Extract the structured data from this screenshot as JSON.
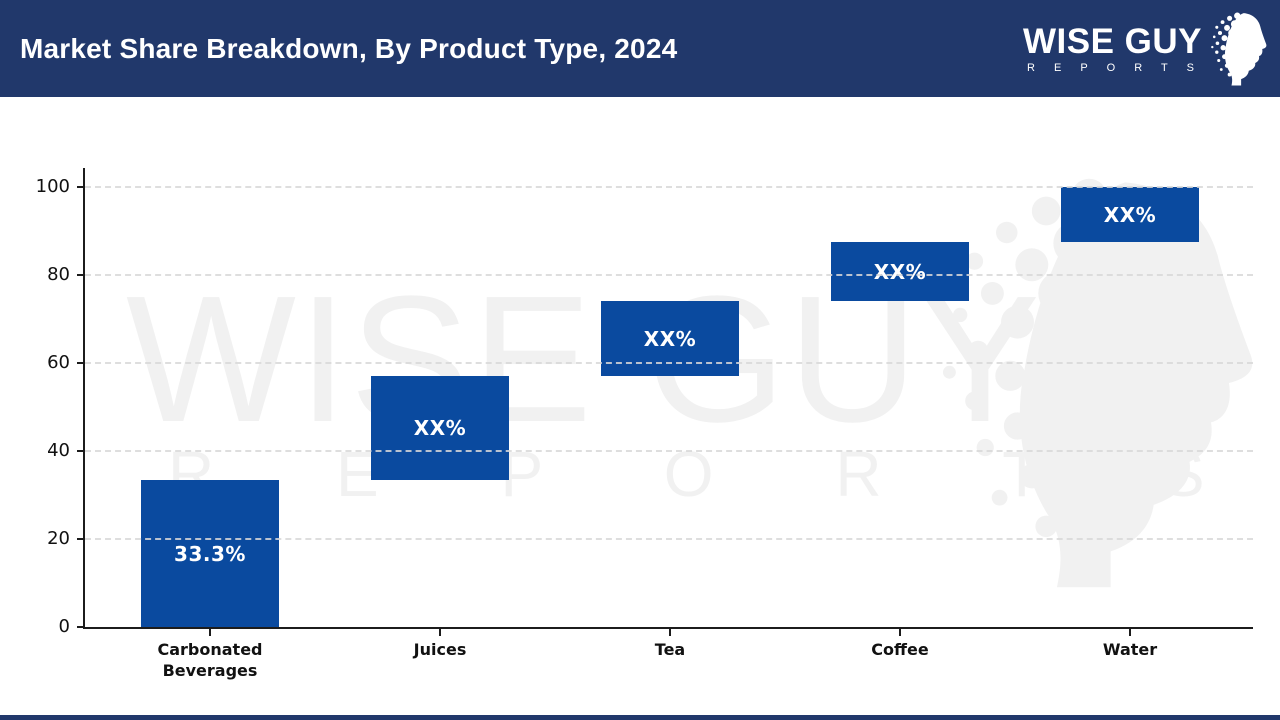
{
  "header": {
    "title": "Market Share Breakdown, By Product Type, 2024",
    "logo": {
      "line1": "WISE GUY",
      "line2": "R E P O R T S"
    }
  },
  "watermark": {
    "line1": "WISE GUY",
    "line2": "R E P O R T S"
  },
  "colors": {
    "header_bg": "#21386b",
    "title_color": "#ffffff",
    "bar": "#0a4a9f",
    "bar_label": "#ffffff",
    "axis": "#1c1c1c",
    "grid": "#d9d9d9",
    "tick_label": "#111111",
    "watermark": "#f1f1f1"
  },
  "chart_data": {
    "type": "bar",
    "subtype": "waterfall",
    "title": "Market Share Breakdown, By Product Type, 2024",
    "xlabel": "",
    "ylabel": "",
    "ylim": [
      0,
      100
    ],
    "yticks": [
      0,
      20,
      40,
      60,
      80,
      100
    ],
    "grid": "horizontal-dashed",
    "legend": "none",
    "categories": [
      "Carbonated Beverages",
      "Juices",
      "Tea",
      "Coffee",
      "Water"
    ],
    "category_display": [
      "Carbonated\nBeverages",
      "Juices",
      "Tea",
      "Coffee",
      "Water"
    ],
    "segments": [
      {
        "category": "Carbonated Beverages",
        "start": 0,
        "end": 33.3,
        "value": 33.3,
        "label": "33.3%"
      },
      {
        "category": "Juices",
        "start": 33.3,
        "end": 57,
        "value": 23.7,
        "label": "XX%"
      },
      {
        "category": "Tea",
        "start": 57,
        "end": 74,
        "value": 17,
        "label": "XX%"
      },
      {
        "category": "Coffee",
        "start": 74,
        "end": 87.5,
        "value": 13.5,
        "label": "XX%"
      },
      {
        "category": "Water",
        "start": 87.5,
        "end": 100,
        "value": 12.5,
        "label": "XX%"
      }
    ]
  }
}
